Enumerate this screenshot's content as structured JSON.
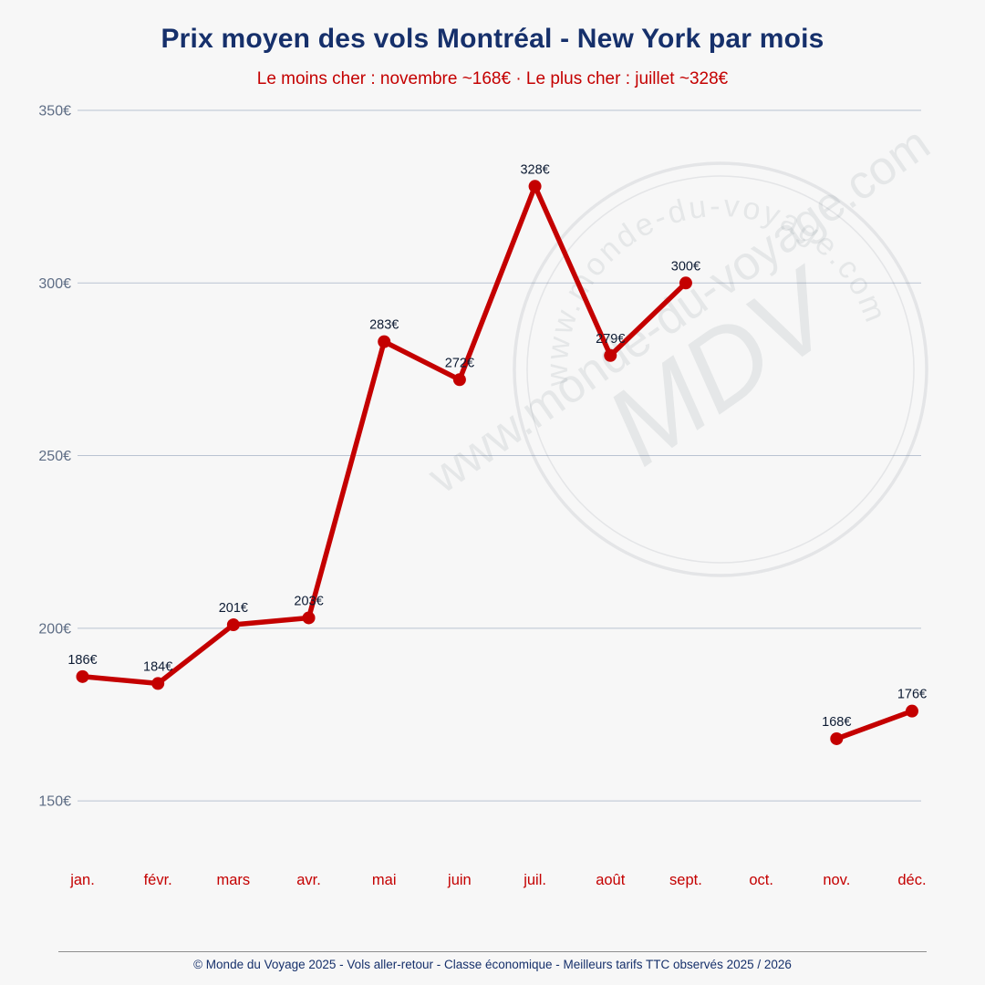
{
  "header": {
    "title": "Prix moyen des vols Montréal - New York par mois",
    "subtitle": "Le moins cher : novembre ~168€ · Le plus cher : juillet ~328€"
  },
  "chart_data": {
    "type": "line",
    "title": "Prix moyen des vols Montréal - New York par mois",
    "categories": [
      "jan.",
      "févr.",
      "mars",
      "avr.",
      "mai",
      "juin",
      "juil.",
      "août",
      "sept.",
      "oct.",
      "nov.",
      "déc."
    ],
    "values": [
      186,
      184,
      201,
      203,
      283,
      272,
      328,
      279,
      300,
      null,
      168,
      176
    ],
    "point_labels": [
      "186€",
      "184€",
      "201€",
      "203€",
      "283€",
      "272€",
      "328€",
      "279€",
      "300€",
      null,
      "168€",
      "176€"
    ],
    "ylim": [
      150,
      350
    ],
    "yticks": [
      350,
      300,
      250,
      200,
      150
    ],
    "ytick_labels": [
      "350€",
      "300€",
      "250€",
      "200€",
      "150€"
    ],
    "xlabel": "",
    "ylabel": "",
    "grid": true,
    "legend": "none",
    "line_color": "#c40000",
    "grid_color": "#b9c3d2"
  },
  "watermark": {
    "ring_text": "www.monde-du-voyage.com",
    "diagonal_text": "www.monde-du-voyage.com",
    "center_text": "MDV"
  },
  "footer": {
    "text": "© Monde du Voyage 2025 - Vols aller-retour - Classe économique - Meilleurs tarifs TTC observés 2025 / 2026"
  }
}
